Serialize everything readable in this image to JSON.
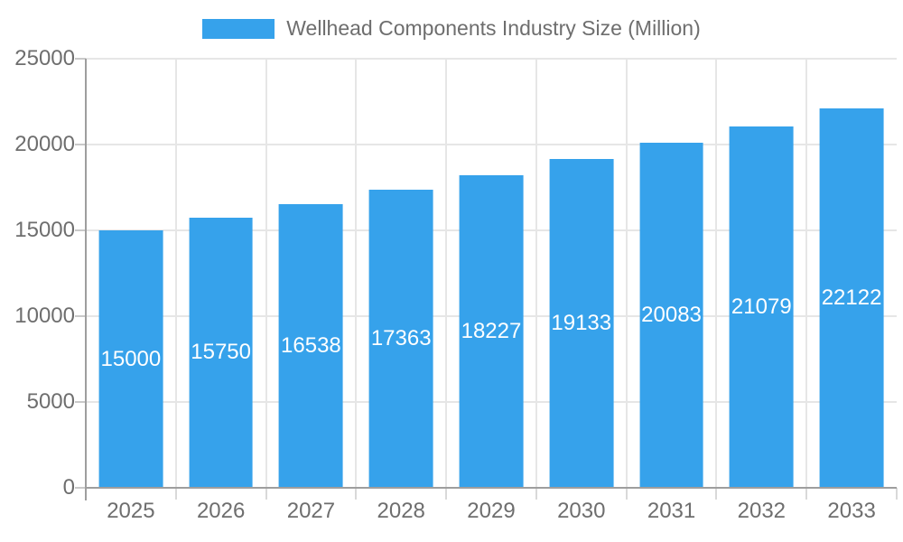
{
  "chart_data": {
    "type": "bar",
    "title": "Wellhead Components Industry Size (Million)",
    "series_name": "Wellhead Components Industry Size (Million)",
    "categories": [
      "2025",
      "2026",
      "2027",
      "2028",
      "2029",
      "2030",
      "2031",
      "2032",
      "2033"
    ],
    "values": [
      15000,
      15750,
      16538,
      17363,
      18227,
      19133,
      20083,
      21079,
      22122
    ],
    "bar_value_labels": [
      "15000",
      "15750",
      "16538",
      "17363",
      "18227",
      "19133",
      "20083",
      "21079",
      "22122"
    ],
    "xlabel": "",
    "ylabel": "",
    "ylim": [
      0,
      25000
    ],
    "yticks": [
      0,
      5000,
      10000,
      15000,
      20000,
      25000
    ],
    "ytick_labels": [
      "0",
      "5000",
      "10000",
      "15000",
      "20000",
      "25000"
    ],
    "grid": true,
    "legend_position": "top",
    "colors": {
      "bar_fill": "#36A2EB",
      "bar_label_text": "#ffffff",
      "axis_text": "#6e6e6e",
      "gridline": "#e6e6e6",
      "axis_line": "#9e9e9e",
      "background": "#ffffff"
    }
  }
}
